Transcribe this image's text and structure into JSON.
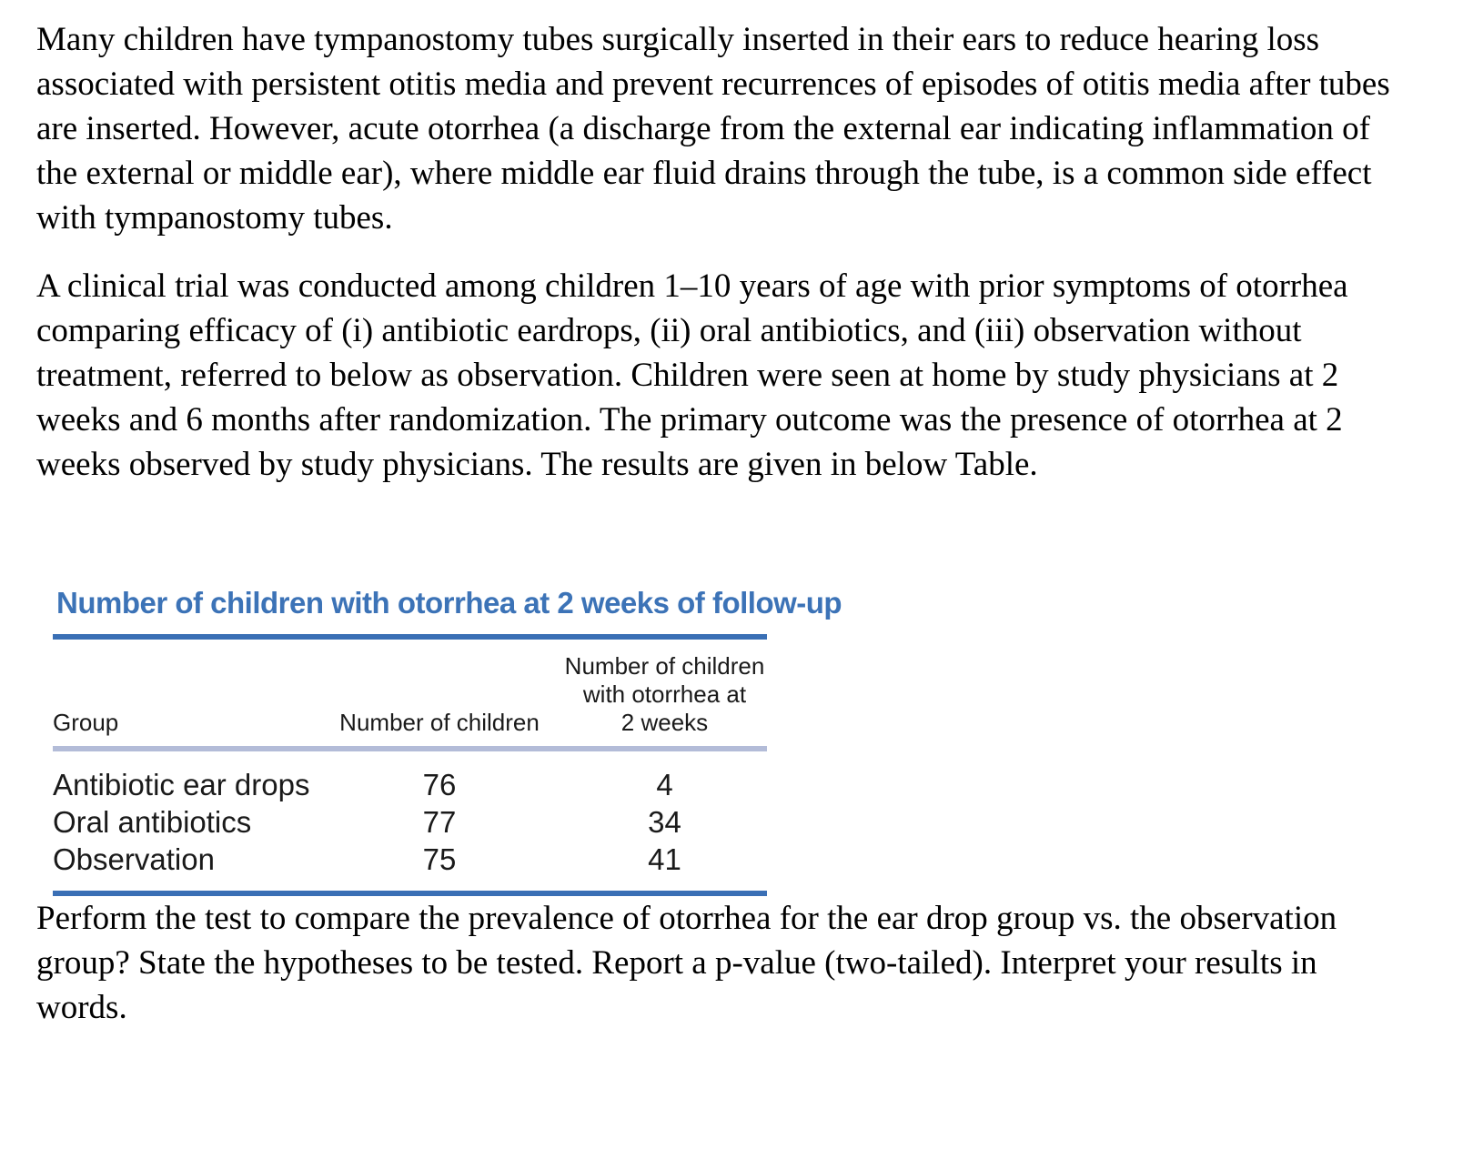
{
  "paragraphs": {
    "intro": "Many children have tympanostomy tubes surgically inserted in their ears to reduce hearing loss associated with persistent otitis media and prevent recurrences of episodes of otitis media after tubes are inserted. However, acute otorrhea (a discharge from the external ear indicating inflammation of the external or middle ear), where middle ear fluid drains through the tube, is a common side effect with tympanostomy tubes.",
    "trial": "A clinical trial was conducted among children 1–10 years of age with prior symptoms of otorrhea comparing efficacy of (i) antibiotic eardrops, (ii) oral antibiotics, and (iii) observation without treatment, referred to below as observation. Children were seen at home by study physicians at 2 weeks and 6 months after randomization. The primary outcome was the presence of otorrhea at 2 weeks observed by study physicians. The results are given in below Table.",
    "question": "Perform the test to compare the prevalence of otorrhea for the ear drop group vs. the observation group? State the hypotheses to be tested. Report a p-value (two-tailed). Interpret your results in words."
  },
  "table": {
    "title": "Number of children with otorrhea at 2 weeks of follow-up",
    "accent_color": "#3a6fb5",
    "title_color": "#3c73b7",
    "header_rule_color": "#b3bcd8",
    "columns": [
      {
        "label": "Group"
      },
      {
        "label": "Number of children"
      },
      {
        "label": "Number of children with otorrhea at 2 weeks",
        "lines": [
          "Number of children",
          "with otorrhea at",
          "2 weeks"
        ]
      }
    ],
    "rows": [
      {
        "group": "Antibiotic ear drops",
        "n": "76",
        "otorrhea": "4"
      },
      {
        "group": "Oral antibiotics",
        "n": "77",
        "otorrhea": "34"
      },
      {
        "group": "Observation",
        "n": "75",
        "otorrhea": "41"
      }
    ]
  }
}
